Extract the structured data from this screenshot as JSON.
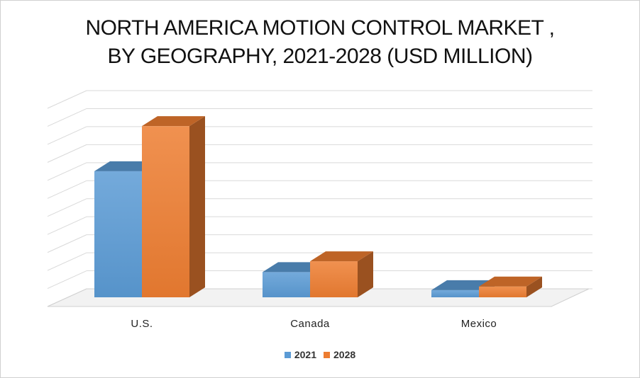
{
  "chart_data": {
    "type": "bar",
    "title_lines": [
      "NORTH AMERICA MOTION CONTROL MARKET ,",
      "BY GEOGRAPHY, 2021-2028 (USD MILLION)"
    ],
    "categories": [
      "U.S.",
      "Canada",
      "Mexico"
    ],
    "series": [
      {
        "name": "2021",
        "color": "#5B9BD5",
        "values": [
          7.0,
          1.4,
          0.4
        ]
      },
      {
        "name": "2028",
        "color": "#ED7D31",
        "values": [
          9.5,
          2.0,
          0.6
        ]
      }
    ],
    "ylim": [
      0,
      11
    ],
    "grid": true,
    "legend_position": "bottom",
    "style": "3d-clustered-column"
  }
}
